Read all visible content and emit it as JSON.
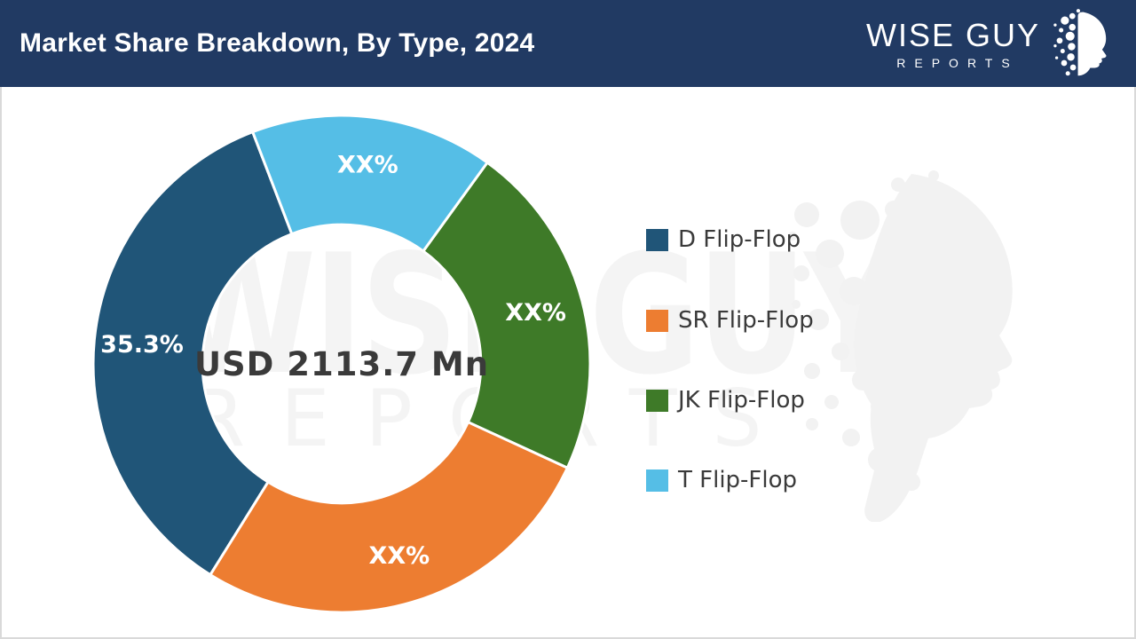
{
  "header": {
    "title": "Market Share Breakdown, By Type, 2024",
    "logo": {
      "line1": "WISE GUY",
      "line2": "REPORTS"
    }
  },
  "watermark": {
    "line1": "WISE GUY",
    "line2": "REPORTS"
  },
  "chart_data": {
    "type": "pie",
    "subtype": "donut",
    "title": "Market Share Breakdown, By Type, 2024",
    "center_label": "USD 2113.7 Mn",
    "categories": [
      "D Flip-Flop",
      "SR Flip-Flop",
      "JK Flip-Flop",
      "T Flip-Flop"
    ],
    "values": [
      35.3,
      27.0,
      21.9,
      15.8
    ],
    "slice_labels": [
      "35.3%",
      "XX%",
      "XX%",
      "XX%"
    ],
    "colors": [
      "#205578",
      "#ED7D31",
      "#3E7A28",
      "#55BEE6"
    ],
    "start_angle_deg": 111,
    "direction": "counterclockwise",
    "legend_position": "right",
    "inner_radius_ratio": 0.56
  },
  "colors": {
    "header_bg": "#213A63",
    "header_text": "#FFFFFF",
    "body_text": "#3A3A3A",
    "watermark": "#F4F4F4",
    "frame_border": "#D9D9D9",
    "slice_gap": "#FFFFFF"
  }
}
